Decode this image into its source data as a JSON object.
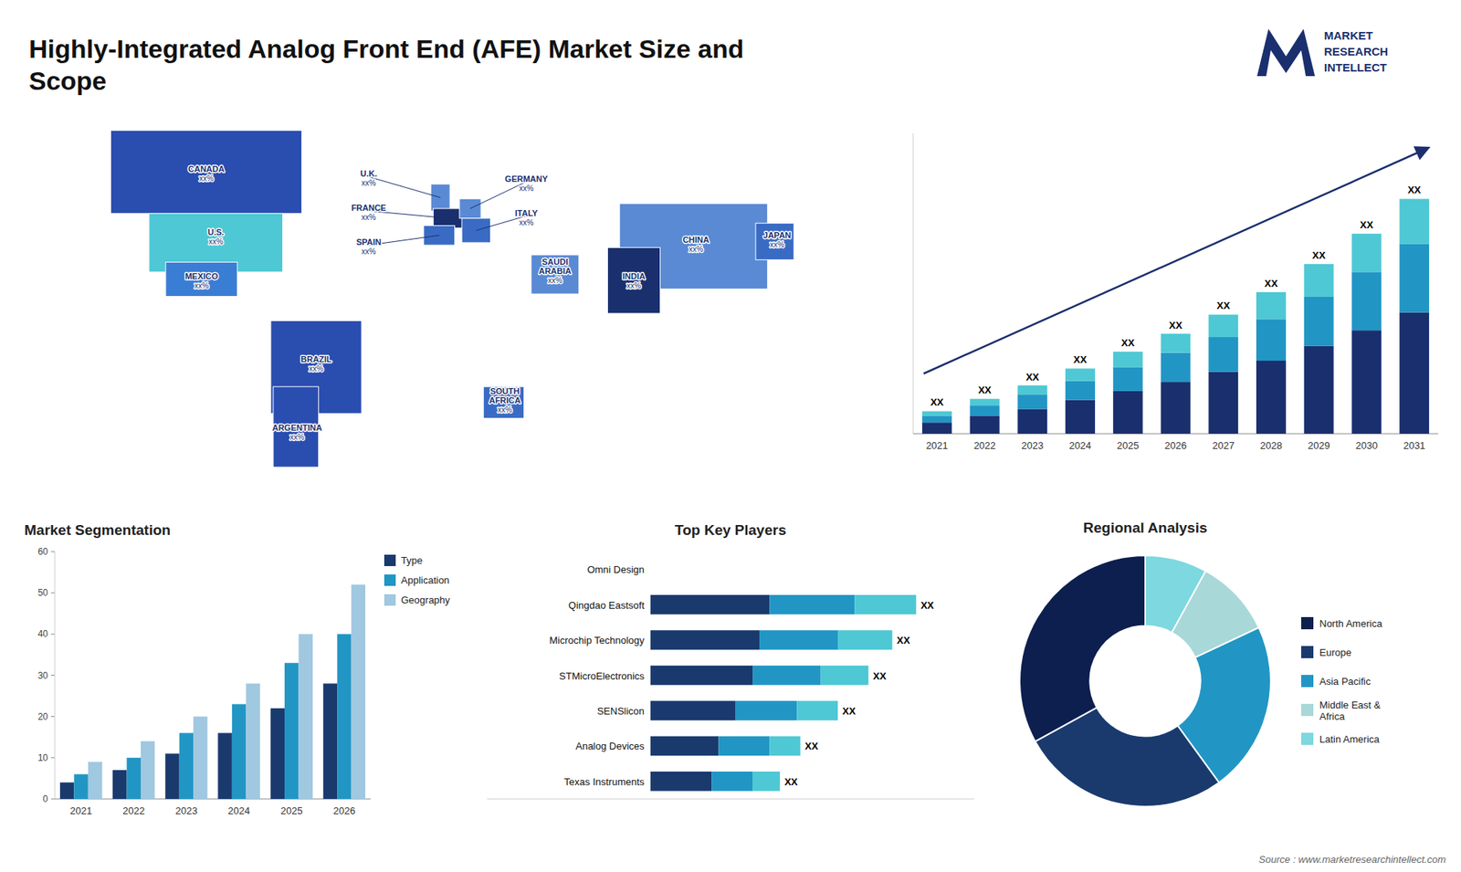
{
  "title": "Highly-Integrated Analog Front End (AFE) Market Size and\nScope",
  "annotations": [
    "MARKET",
    "RESEARCH",
    "INTELLECT",
    "Source : www.marketresearchintellect.com"
  ],
  "chart_data": [
    {
      "type": "map",
      "categories": [
        "CANADA",
        "U.S.",
        "MEXICO",
        "BRAZIL",
        "ARGENTINA",
        "U.K.",
        "FRANCE",
        "SPAIN",
        "GERMANY",
        "ITALY",
        "SAUDI\nARABIA",
        "SOUTH\nAFRICA",
        "CHINA",
        "JAPAN",
        "INDIA"
      ],
      "colors": [
        "#2a4db0",
        "#4ec8d4",
        "#3a7dd4",
        "#2a4db0",
        "#2a4db0",
        "#5a8ad4",
        "#1a2f6e",
        "#3a6bc4",
        "#5a8ad4",
        "#3a6bc4",
        "#5a8ad4",
        "#3a6bc4",
        "#5a8ad4",
        "#3a6bc4",
        "#1a2f6e"
      ],
      "annotations": [
        "xx%",
        "xx%",
        "xx%",
        "xx%",
        "xx%",
        "xx%",
        "xx%",
        "xx%",
        "xx%",
        "xx%",
        "xx%",
        "xx%",
        "xx%",
        "xx%",
        "xx%"
      ]
    },
    {
      "type": "bar",
      "stacked": true,
      "categories": [
        "2021",
        "2022",
        "2023",
        "2024",
        "2025",
        "2026",
        "2027",
        "2028",
        "2029",
        "2030",
        "2031"
      ],
      "series": [
        {
          "color": "#1a2f6e",
          "values": [
            1.0,
            1.6,
            2.2,
            3.0,
            3.8,
            4.6,
            5.5,
            6.5,
            7.8,
            9.2,
            10.8
          ]
        },
        {
          "color": "#2196c4",
          "values": [
            0.6,
            0.9,
            1.3,
            1.7,
            2.1,
            2.6,
            3.1,
            3.7,
            4.4,
            5.2,
            6.1
          ]
        },
        {
          "color": "#4ec8d4",
          "values": [
            0.4,
            0.6,
            0.8,
            1.1,
            1.4,
            1.7,
            2.0,
            2.4,
            2.9,
            3.4,
            4.0
          ]
        }
      ],
      "ylim": [
        0,
        26.752
      ],
      "tick_labels": "x",
      "annotations": [
        "XX",
        "XX",
        "XX",
        "XX",
        "XX",
        "XX",
        "XX",
        "XX",
        "XX",
        "XX",
        "XX"
      ]
    },
    {
      "type": "bar",
      "title": "Market Segmentation",
      "categories": [
        "2021",
        "2022",
        "2023",
        "2024",
        "2025",
        "2026"
      ],
      "series": [
        {
          "name": "Type",
          "color": "#1a3a6e",
          "values": [
            4,
            7,
            11,
            16,
            22,
            28
          ]
        },
        {
          "name": "Application",
          "color": "#2196c4",
          "values": [
            6,
            10,
            16,
            23,
            33,
            40
          ]
        },
        {
          "name": "Geography",
          "color": "#a0c8e0",
          "values": [
            9,
            14,
            20,
            28,
            40,
            52
          ]
        }
      ],
      "ylim": [
        0,
        60
      ],
      "yticks": [
        0,
        10,
        20,
        30,
        40,
        50,
        60
      ],
      "legend": "right"
    },
    {
      "type": "bar",
      "orientation": "horizontal",
      "stacked": true,
      "title": "Top Key Players",
      "categories": [
        "Omni Design",
        "Qingdao Eastsoft",
        "Microchip Technology",
        "STMicroElectronics",
        "SENSlicon",
        "Analog Devices",
        "Texas Instruments"
      ],
      "series": [
        {
          "color": "#1a3a6e",
          "values": [
            0,
            3.5,
            3.2,
            3.0,
            2.5,
            2.0,
            1.8
          ]
        },
        {
          "color": "#2196c4",
          "values": [
            0,
            2.5,
            2.3,
            2.0,
            1.8,
            1.5,
            1.2
          ]
        },
        {
          "color": "#4ec8d4",
          "values": [
            0,
            1.8,
            1.6,
            1.4,
            1.2,
            0.9,
            0.8
          ]
        }
      ],
      "xlim": [
        -4.8,
        9.5
      ],
      "tick_labels": "y",
      "annotations": [
        "XX",
        "XX",
        "XX",
        "XX",
        "XX",
        "XX"
      ]
    },
    {
      "type": "pie",
      "title": "Regional Analysis",
      "categories": [
        "Latin America",
        "Middle East &\nAfrica",
        "Asia Pacific",
        "Europe",
        "North America"
      ],
      "values": [
        8,
        10,
        22,
        27,
        33
      ],
      "colors": [
        "#7dd8e0",
        "#a8d8d8",
        "#2196c4",
        "#1a3a6e",
        "#0d1f4e"
      ],
      "legend": "right"
    }
  ]
}
